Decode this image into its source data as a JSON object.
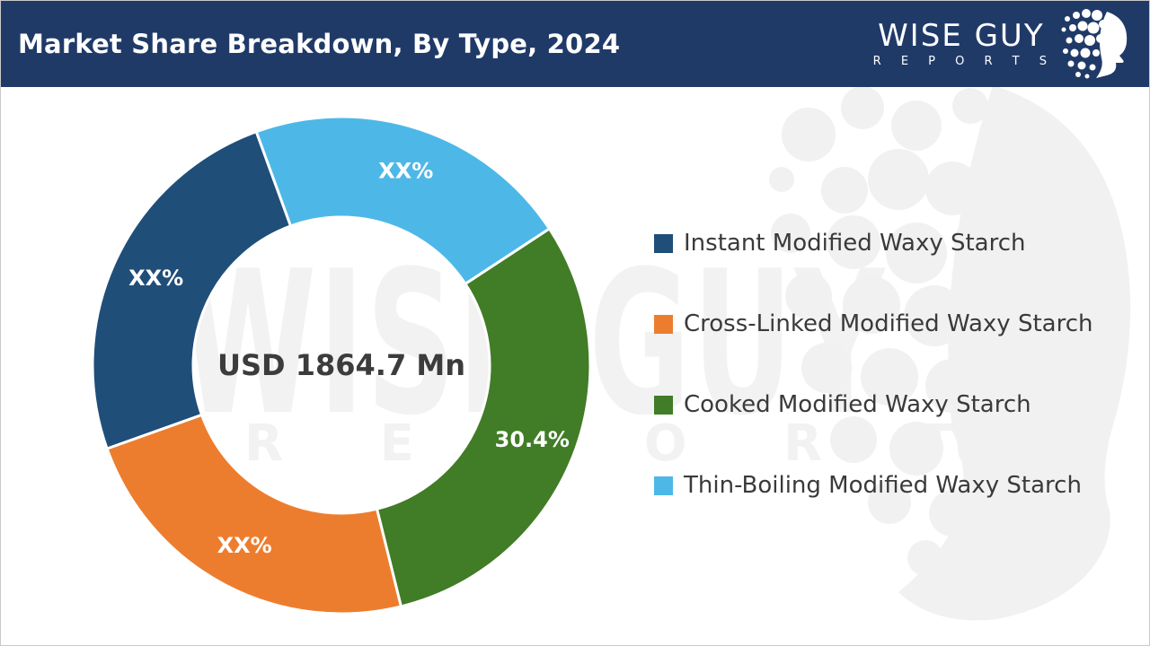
{
  "header": {
    "title": "Market Share Breakdown, By Type, 2024",
    "bg_color": "#203a68",
    "logo": {
      "line1": "WISE GUY",
      "line2": "R E P O R T S"
    }
  },
  "watermark": {
    "line1": "WISE GUY",
    "line2": "R E P O R T S"
  },
  "chart_data": {
    "type": "pie",
    "subtype": "donut",
    "title": "Market Share Breakdown, By Type, 2024",
    "center_label": "USD 1864.7 Mn",
    "legend_position": "right",
    "start_angle_deg": 110,
    "direction": "counterclockwise",
    "slices": [
      {
        "label": "Instant Modified Waxy Starch",
        "display_value": "XX%",
        "value_pct": 24.9,
        "color": "#1f4e79"
      },
      {
        "label": "Cross-Linked Modified Waxy Starch",
        "display_value": "XX%",
        "value_pct": 23.4,
        "color": "#ed7d2e"
      },
      {
        "label": "Cooked Modified Waxy Starch",
        "display_value": "30.4%",
        "value_pct": 30.4,
        "color": "#417c26"
      },
      {
        "label": "Thin-Boiling Modified Waxy Starch",
        "display_value": "XX%",
        "value_pct": 21.3,
        "color": "#4db8e8"
      }
    ]
  }
}
